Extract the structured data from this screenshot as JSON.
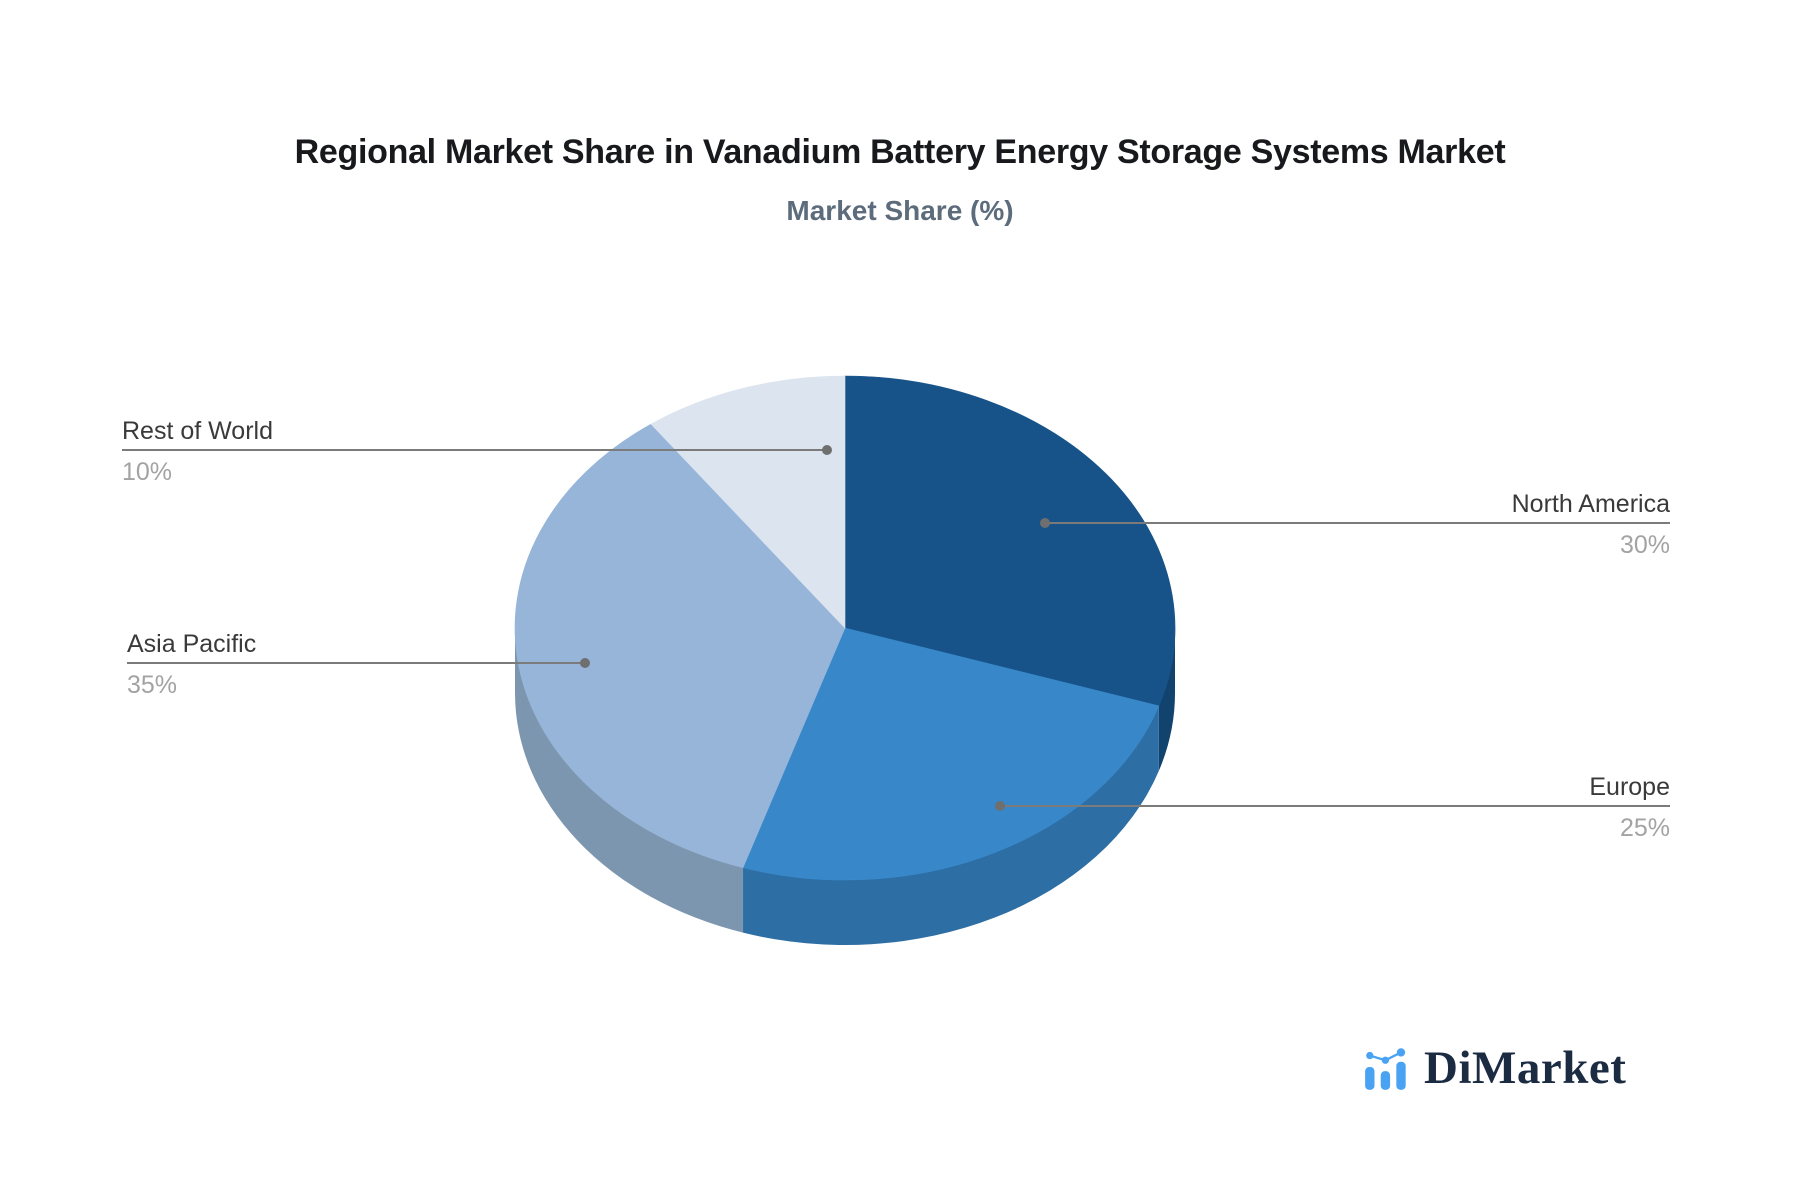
{
  "header": {
    "title": "Regional Market Share in Vanadium Battery Energy Storage Systems Market",
    "subtitle": "Market Share (%)"
  },
  "chart_data": {
    "type": "pie",
    "title": "Regional Market Share in Vanadium Battery Energy Storage Systems Market",
    "subtitle": "Market Share (%)",
    "labels": [
      "North America",
      "Europe",
      "Asia Pacific",
      "Rest of World"
    ],
    "values": [
      30,
      25,
      35,
      10
    ],
    "unit": "%",
    "display_values": [
      "30%",
      "25%",
      "35%",
      "10%"
    ],
    "colors": [
      "#175389",
      "#3787c9",
      "#96b5d9",
      "#dce4ef"
    ],
    "side_colors": [
      "#12436e",
      "#2d6ea4",
      "#7d96af",
      "#b9c6d8"
    ],
    "effect": "3d",
    "start_angle_deg": 0,
    "direction": "clockwise",
    "legend": "none",
    "leader_line_color": "#7b7b7b",
    "leader_dot_color": "#6f6f6f",
    "label_color": "#3a3a3a",
    "value_color": "#a3a3a3"
  },
  "logo": {
    "text": "DiMarket",
    "icon": "bar-chart-trend-icon",
    "icon_color": "#4aa2f2",
    "text_color": "#1b2b42"
  }
}
